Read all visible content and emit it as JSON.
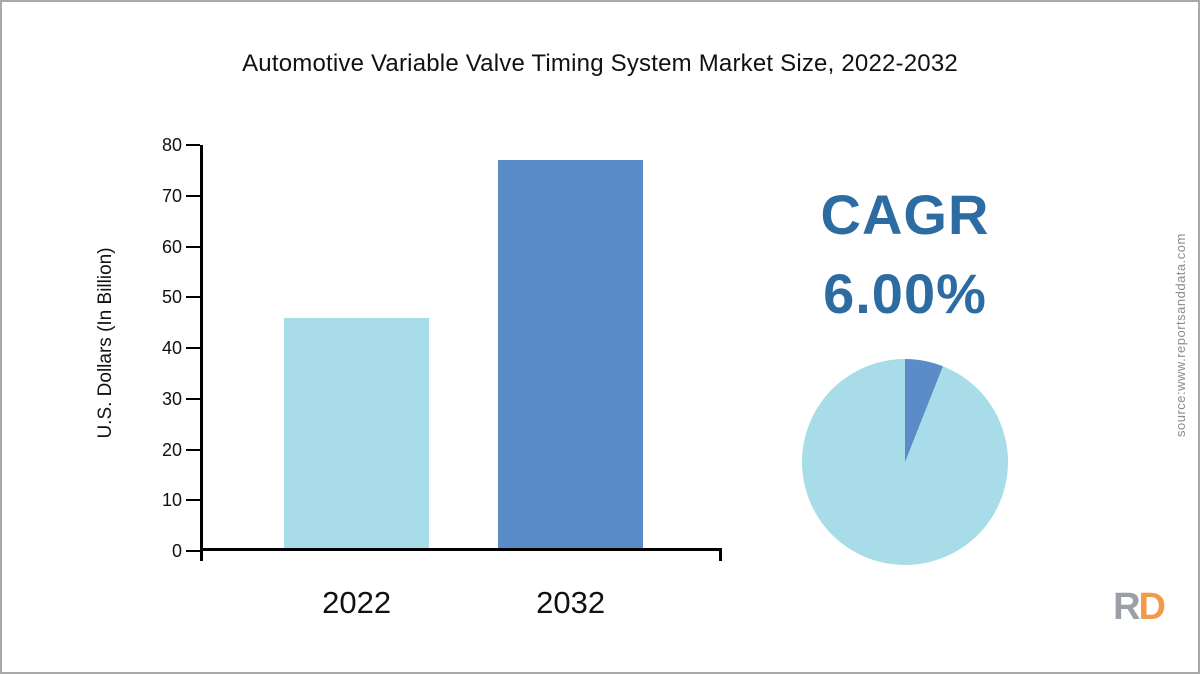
{
  "title": "Automotive Variable Valve Timing System Market Size, 2022-2032",
  "chart_data": [
    {
      "type": "bar",
      "categories": [
        "2022",
        "2032"
      ],
      "values": [
        45.9,
        77
      ],
      "title": "Automotive Variable Valve Timing System Market Size, 2022-2032",
      "xlabel": "",
      "ylabel": "U.S. Dollars (In Billion)",
      "ylim": [
        0,
        80
      ],
      "ytick_step": 10,
      "bar_colors": [
        "#a7dce8",
        "#5b8cc8"
      ],
      "grid": false,
      "legend": false
    },
    {
      "type": "pie",
      "slices": [
        {
          "label": "CAGR",
          "value": 6,
          "color": "#5b8cc8"
        },
        {
          "label": "remainder",
          "value": 94,
          "color": "#a7dce8"
        }
      ],
      "start_angle": "top"
    }
  ],
  "cagr": {
    "label": "CAGR",
    "value": "6.00%",
    "color": "#2d6ba3"
  },
  "source_note": "source:www.reportsanddata.com",
  "logo": {
    "letter_r": "R",
    "letter_d": "D",
    "r_color": "#9aa0a6",
    "d_color": "#f2994a"
  }
}
